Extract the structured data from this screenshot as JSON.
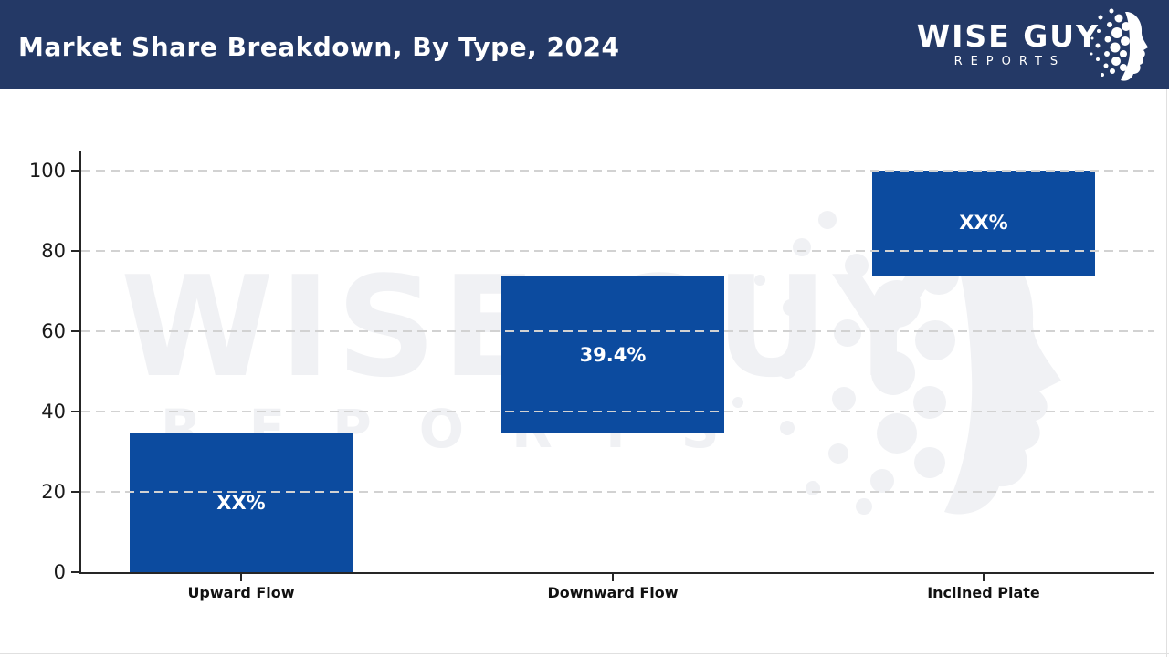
{
  "header": {
    "title": "Market Share Breakdown, By Type, 2024",
    "logo": {
      "line1": "WISE GUY",
      "line2": "REPORTS"
    }
  },
  "watermark": {
    "line1": "WISE GUY",
    "line2": "REPORTS"
  },
  "colors": {
    "header_bg": "#243966",
    "bar": "#0c4b9f",
    "bar_label": "#ffffff",
    "axis": "#262626",
    "grid": "#d2d2d2",
    "tick_text": "#1a1a1a",
    "watermark": "#f0f1f4"
  },
  "chart_data": {
    "type": "bar",
    "subtype": "floating_segment_waterfall",
    "title": "Market Share Breakdown, By Type, 2024",
    "categories": [
      "Upward Flow",
      "Downward Flow",
      "Inclined Plate"
    ],
    "series": [
      {
        "name": "Market share (%)",
        "segments": [
          {
            "category": "Upward Flow",
            "start": 0,
            "end": 34.5,
            "height": 34.5,
            "label": "XX%"
          },
          {
            "category": "Downward Flow",
            "start": 34.5,
            "end": 73.9,
            "height": 39.4,
            "label": "39.4%"
          },
          {
            "category": "Inclined Plate",
            "start": 73.9,
            "end": 100,
            "height": 26.1,
            "label": "XX%"
          }
        ]
      }
    ],
    "yticks": [
      0,
      20,
      40,
      60,
      80,
      100
    ],
    "ylim": [
      0,
      105
    ],
    "xlabel": "",
    "ylabel": "",
    "grid": "horizontal-dashed",
    "legend_position": "none"
  }
}
